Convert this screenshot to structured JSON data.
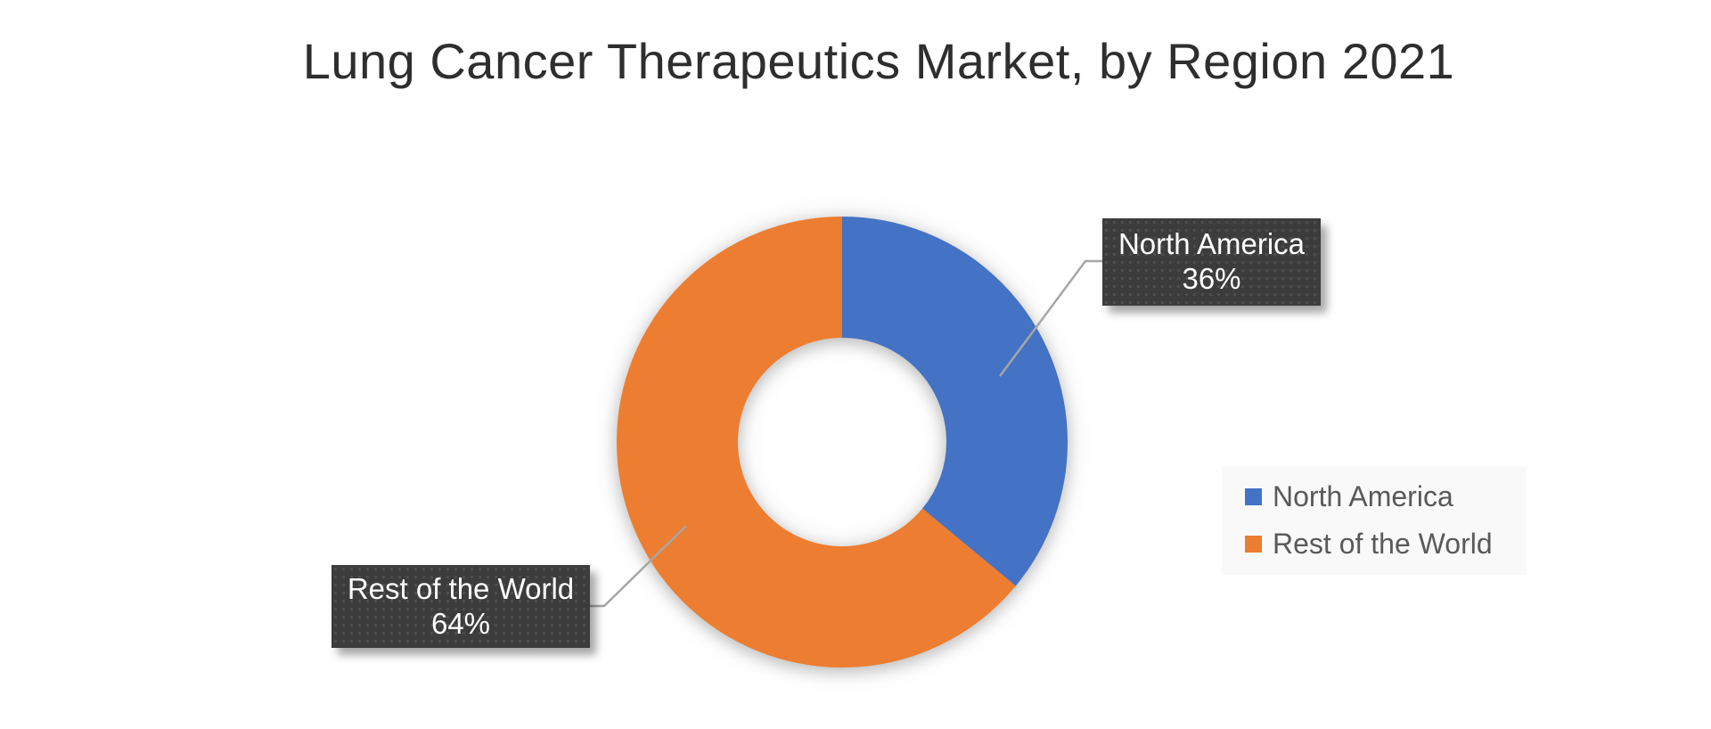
{
  "title": "Lung Cancer Therapeutics Market, by Region 2021",
  "chart_data": {
    "type": "pie",
    "subtype": "donut",
    "title": "Lung Cancer Therapeutics Market, by Region 2021",
    "categories": [
      "North America",
      "Rest of the World"
    ],
    "values": [
      36,
      64
    ],
    "unit": "%",
    "colors": [
      "#4472C4",
      "#ED7D31"
    ],
    "start_angle_deg": 0,
    "direction": "clockwise",
    "inner_radius_ratio": 0.46,
    "legend_position": "right",
    "data_labels": [
      {
        "label": "North America",
        "value_text": "36%"
      },
      {
        "label": "Rest of the World",
        "value_text": "64%"
      }
    ]
  },
  "style": {
    "leader_line_color": "#a6a6a6",
    "callout_background": "#3c3c3c",
    "callout_text_color": "#ffffff",
    "legend_text_color": "#595959",
    "title_color": "#2e2e2e"
  }
}
